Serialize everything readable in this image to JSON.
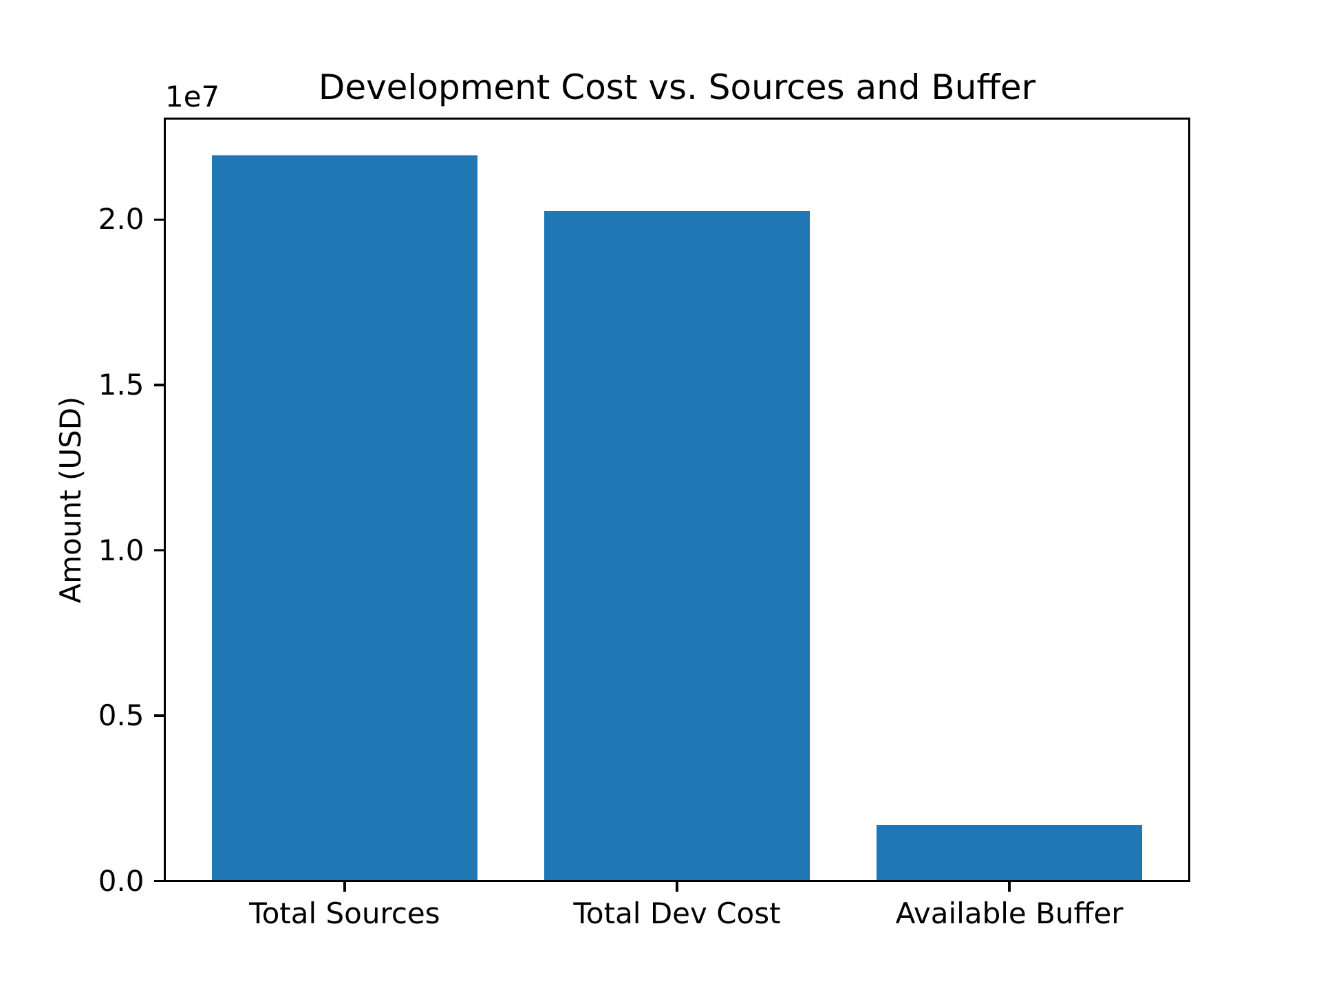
{
  "chart_data": {
    "type": "bar",
    "title": "Development Cost vs. Sources and Buffer",
    "xlabel": "",
    "ylabel": "Amount (USD)",
    "categories": [
      "Total Sources",
      "Total Dev Cost",
      "Available Buffer"
    ],
    "values": [
      21950000,
      20250000,
      1700000
    ],
    "bar_color": "#1f77b4",
    "axis_color": "#000000",
    "text_color": "#000000",
    "background_color": "#ffffff",
    "ylim": [
      0,
      23047500
    ],
    "yticks": [
      0,
      5000000,
      10000000,
      15000000,
      20000000
    ],
    "ytick_labels": [
      "0.0",
      "0.5",
      "1.0",
      "1.5",
      "2.0"
    ],
    "y_offset_label": "1e7",
    "grid": false,
    "legend": false
  }
}
